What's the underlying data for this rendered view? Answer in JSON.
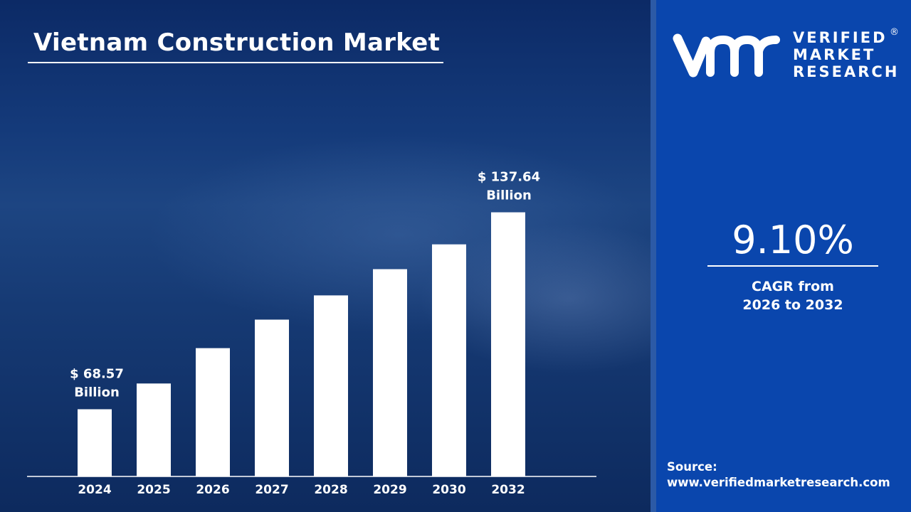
{
  "title": "Vietnam Construction Market",
  "brand": {
    "line1": "VERIFIED",
    "line2": "MARKET",
    "line3": "RESEARCH",
    "registered": "®",
    "logo_mark": "vmr"
  },
  "cagr": {
    "value": "9.10%",
    "label_line1": "CAGR from",
    "label_line2": "2026 to 2032"
  },
  "source": {
    "label": "Source:",
    "url": "www.verifiedmarketresearch.com"
  },
  "colors": {
    "left_bg": "#0c2a66",
    "right_panel": "#0a46ad",
    "bars": "#ffffff"
  },
  "chart_data": {
    "type": "bar",
    "categories": [
      "2024",
      "2025",
      "2026",
      "2027",
      "2028",
      "2029",
      "2030",
      "2032"
    ],
    "values": [
      68.57,
      77.6,
      90.0,
      100.0,
      108.5,
      117.7,
      126.4,
      137.64
    ],
    "unit": "USD Billion",
    "ylim": [
      45,
      150
    ],
    "grid": false,
    "annotations": [
      {
        "category": "2024",
        "line1": "$ 68.57",
        "line2": "Billion"
      },
      {
        "category": "2032",
        "line1": "$ 137.64",
        "line2": "Billion"
      }
    ]
  }
}
